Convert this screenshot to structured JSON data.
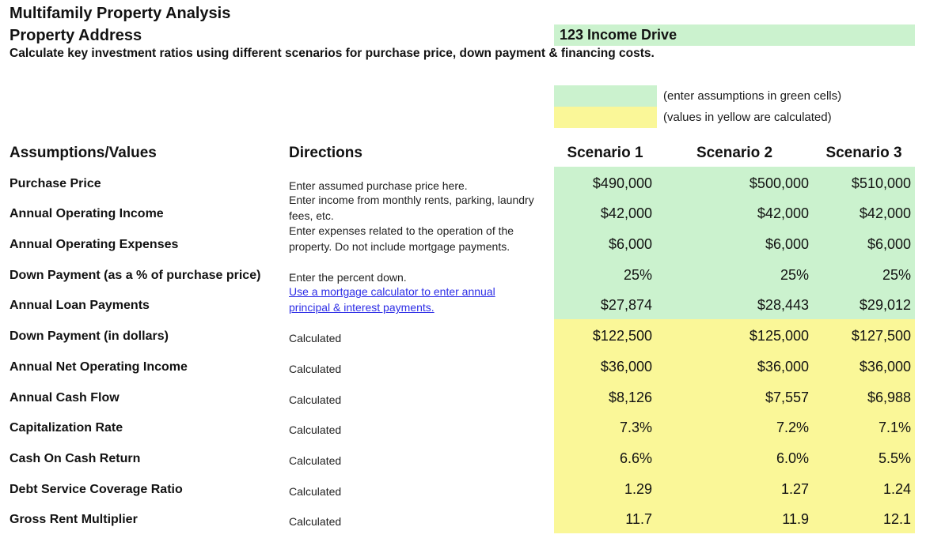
{
  "header": {
    "title": "Multifamily Property Analysis",
    "property_address_label": "Property Address",
    "property_address_value": "123 Income Drive",
    "subtitle": "Calculate key investment ratios using different scenarios for purchase price, down payment & financing costs."
  },
  "legend": {
    "green_note": "(enter assumptions in green cells)",
    "yellow_note": "(values in yellow are calculated)"
  },
  "colors": {
    "assumption_green": "#CBF2CE",
    "calculated_yellow": "#FAF798",
    "hyperlink_blue": "#2E2EE6"
  },
  "table": {
    "col_assumptions": "Assumptions/Values",
    "col_directions": "Directions",
    "scenarios": [
      "Scenario 1",
      "Scenario 2",
      "Scenario 3"
    ],
    "rows": [
      {
        "label": "Purchase Price",
        "direction_lines": [
          "Enter assumed purchase price here."
        ],
        "values": [
          "$490,000",
          "$500,000",
          "$510,000"
        ]
      },
      {
        "label": "Annual Operating Income",
        "direction_lines": [
          "Enter income from monthly rents, parking, laundry",
          "fees, etc."
        ],
        "values": [
          "$42,000",
          "$42,000",
          "$42,000"
        ]
      },
      {
        "label": "Annual Operating Expenses",
        "direction_lines": [
          "Enter expenses related to the operation of the",
          "property. Do not include mortgage payments."
        ],
        "values": [
          "$6,000",
          "$6,000",
          "$6,000"
        ]
      },
      {
        "label": "Down Payment (as a % of purchase price)",
        "direction_lines": [
          "Enter the percent down."
        ],
        "values": [
          "25%",
          "25%",
          "25%"
        ]
      },
      {
        "label": "Annual Loan Payments",
        "direction_lines": [
          "Use a mortgage calculator to enter annual",
          "principal & interest payments."
        ],
        "is_link": true,
        "values": [
          "$27,874",
          "$28,443",
          "$29,012"
        ]
      },
      {
        "label": "Down Payment (in dollars)",
        "direction_lines": [
          "Calculated"
        ],
        "values": [
          "$122,500",
          "$125,000",
          "$127,500"
        ]
      },
      {
        "label": "Annual Net Operating Income",
        "direction_lines": [
          "Calculated"
        ],
        "values": [
          "$36,000",
          "$36,000",
          "$36,000"
        ]
      },
      {
        "label": "Annual Cash Flow",
        "direction_lines": [
          "Calculated"
        ],
        "values": [
          "$8,126",
          "$7,557",
          "$6,988"
        ]
      },
      {
        "label": "Capitalization Rate",
        "direction_lines": [
          "Calculated"
        ],
        "values": [
          "7.3%",
          "7.2%",
          "7.1%"
        ]
      },
      {
        "label": "Cash On Cash Return",
        "direction_lines": [
          "Calculated"
        ],
        "values": [
          "6.6%",
          "6.0%",
          "5.5%"
        ]
      },
      {
        "label": "Debt Service Coverage Ratio",
        "direction_lines": [
          "Calculated"
        ],
        "values": [
          "1.29",
          "1.27",
          "1.24"
        ]
      },
      {
        "label": "Gross Rent Multiplier",
        "direction_lines": [
          "Calculated"
        ],
        "values": [
          "11.7",
          "11.9",
          "12.1"
        ]
      }
    ]
  }
}
